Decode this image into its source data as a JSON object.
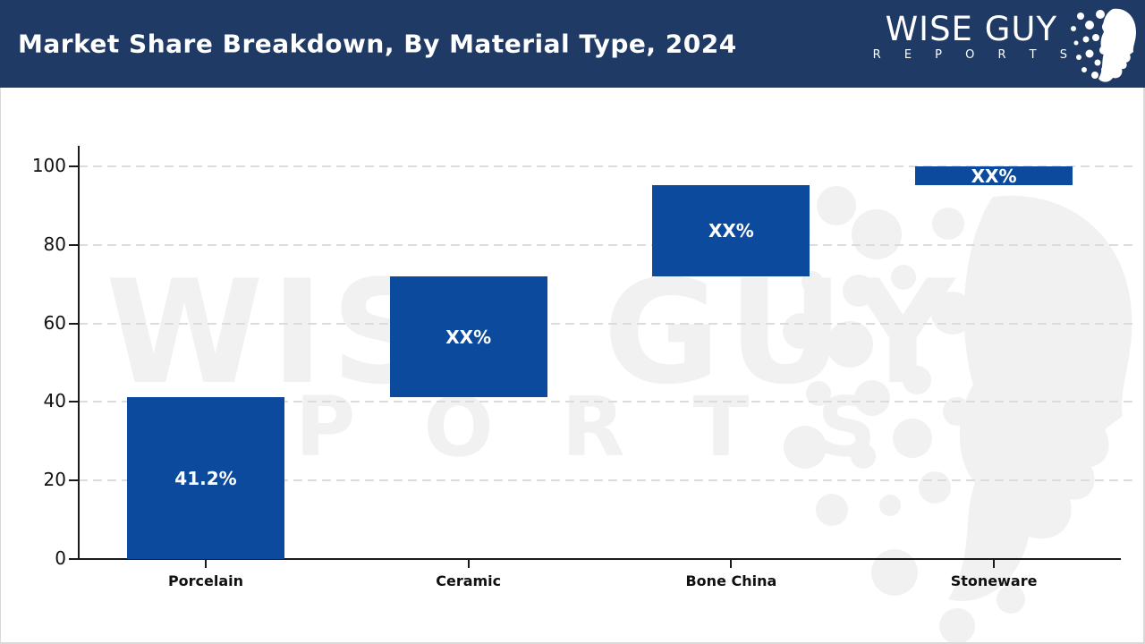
{
  "header": {
    "title": "Market Share Breakdown, By Material Type, 2024",
    "logo": {
      "line1": "WISE GUY",
      "line2": "R E P O R T S"
    }
  },
  "watermark": {
    "line1": "WISE GUY",
    "line2": "P O R T S"
  },
  "colors": {
    "header_bg": "#1f3a64",
    "bar": "#0c4a9e",
    "bar_label": "#ffffff",
    "grid": "#dcdcdc",
    "axis": "#1a1a1a",
    "watermark": "#f1f1f1"
  },
  "chart_data": {
    "type": "bar",
    "subtype": "waterfall",
    "title": "Market Share Breakdown, By Material Type, 2024",
    "xlabel": "",
    "ylabel": "",
    "categories": [
      "Porcelain",
      "Ceramic",
      "Bone China",
      "Stoneware"
    ],
    "segments": [
      {
        "category": "Porcelain",
        "start": 0,
        "end": 41.2,
        "value": 41.2,
        "label": "41.2%"
      },
      {
        "category": "Ceramic",
        "start": 41.2,
        "end": 72.0,
        "value": 30.8,
        "label": "XX%"
      },
      {
        "category": "Bone China",
        "start": 72.0,
        "end": 95.2,
        "value": 23.2,
        "label": "XX%"
      },
      {
        "category": "Stoneware",
        "start": 95.2,
        "end": 100.0,
        "value": 4.8,
        "label": "XX%"
      }
    ],
    "yticks": [
      0,
      20,
      40,
      60,
      80,
      100
    ],
    "ylim": [
      0,
      105
    ],
    "grid": "horizontal-dashed",
    "legend": "none"
  }
}
